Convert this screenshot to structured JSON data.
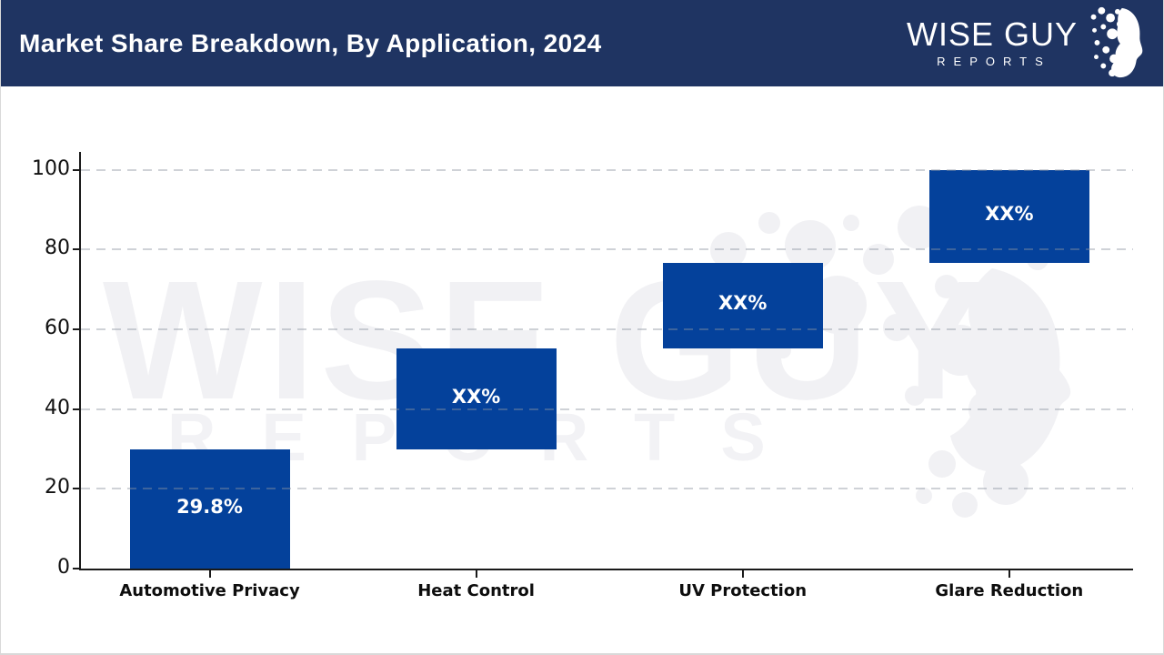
{
  "header": {
    "title": "Market Share Breakdown, By Application, 2024",
    "logo": {
      "name": "WISE GUY",
      "sub": "REPORTS",
      "face_icon": "dotted-head-profile"
    }
  },
  "watermark": {
    "line1": "WISE GUY",
    "line2": "REPORTS",
    "face_icon": "dotted-head-profile"
  },
  "chart_data": {
    "type": "bar",
    "subtype": "floating-waterfall",
    "title": "Market Share Breakdown, By Application, 2024",
    "categories": [
      "Automotive Privacy",
      "Heat Control",
      "UV Protection",
      "Glare Reduction"
    ],
    "segments": [
      {
        "category": "Automotive Privacy",
        "start": 0,
        "end": 29.8,
        "label": "29.8%"
      },
      {
        "category": "Heat Control",
        "start": 29.8,
        "end": 55.2,
        "label": "XX%"
      },
      {
        "category": "UV Protection",
        "start": 55.2,
        "end": 76.6,
        "label": "XX%"
      },
      {
        "category": "Glare Reduction",
        "start": 76.6,
        "end": 100,
        "label": "XX%"
      }
    ],
    "xlabel": "",
    "ylabel": "",
    "ylim": [
      0,
      105
    ],
    "yticks": [
      0,
      20,
      40,
      60,
      80,
      100
    ],
    "grid": true,
    "grid_style": "dashed",
    "legend": "none",
    "bar_color": "#04419b",
    "bar_label_color": "#ffffff",
    "header_color": "#1f3462"
  }
}
